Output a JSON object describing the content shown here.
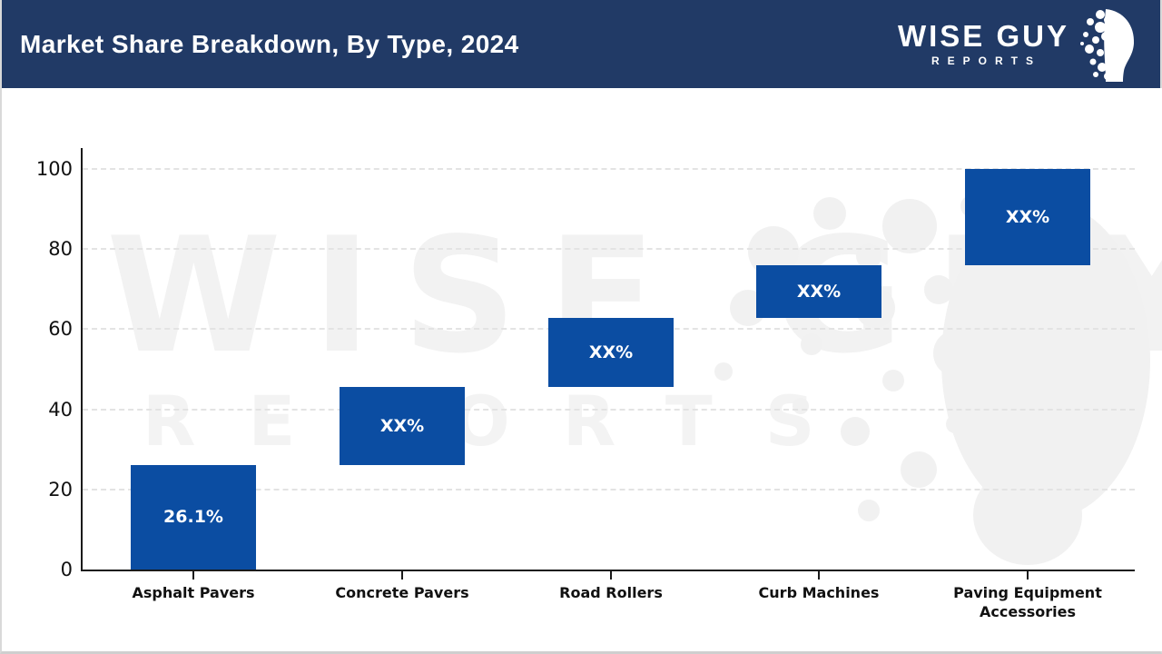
{
  "header": {
    "title": "Market Share Breakdown, By Type, 2024",
    "logo": {
      "line1": "WISE GUY",
      "line2": "REPORTS"
    }
  },
  "watermark": {
    "line1": "WISE GUY",
    "line2": "REPORTS"
  },
  "colors": {
    "header_bg": "#213A66",
    "bar": "#0B4DA2",
    "grid": "#E3E3E3",
    "axis": "#1A1A1A",
    "bar_label_text": "#FFFFFF",
    "watermark": "#F2F2F2"
  },
  "chart_data": {
    "type": "bar",
    "subtype": "waterfall-stacked-percentage",
    "title": "Market Share Breakdown, By Type, 2024",
    "xlabel": "",
    "ylabel": "",
    "ylim": [
      0,
      105
    ],
    "yticks": [
      0,
      20,
      40,
      60,
      80,
      100
    ],
    "grid": "horizontal-dashed",
    "legend": "none",
    "categories": [
      "Asphalt Pavers",
      "Concrete Pavers",
      "Road Rollers",
      "Curb Machines",
      "Paving Equipment Accessories"
    ],
    "segments": [
      {
        "category": "Asphalt Pavers",
        "start": 0,
        "end": 26.1,
        "value": 26.1,
        "label": "26.1%"
      },
      {
        "category": "Concrete Pavers",
        "start": 26.1,
        "end": 45.5,
        "value": 19.4,
        "label": "XX%"
      },
      {
        "category": "Road Rollers",
        "start": 45.5,
        "end": 62.7,
        "value": 17.2,
        "label": "XX%"
      },
      {
        "category": "Curb Machines",
        "start": 62.7,
        "end": 76.0,
        "value": 13.3,
        "label": "XX%"
      },
      {
        "category": "Paving Equipment Accessories",
        "start": 76.0,
        "end": 100.0,
        "value": 24.0,
        "label": "XX%"
      }
    ]
  }
}
